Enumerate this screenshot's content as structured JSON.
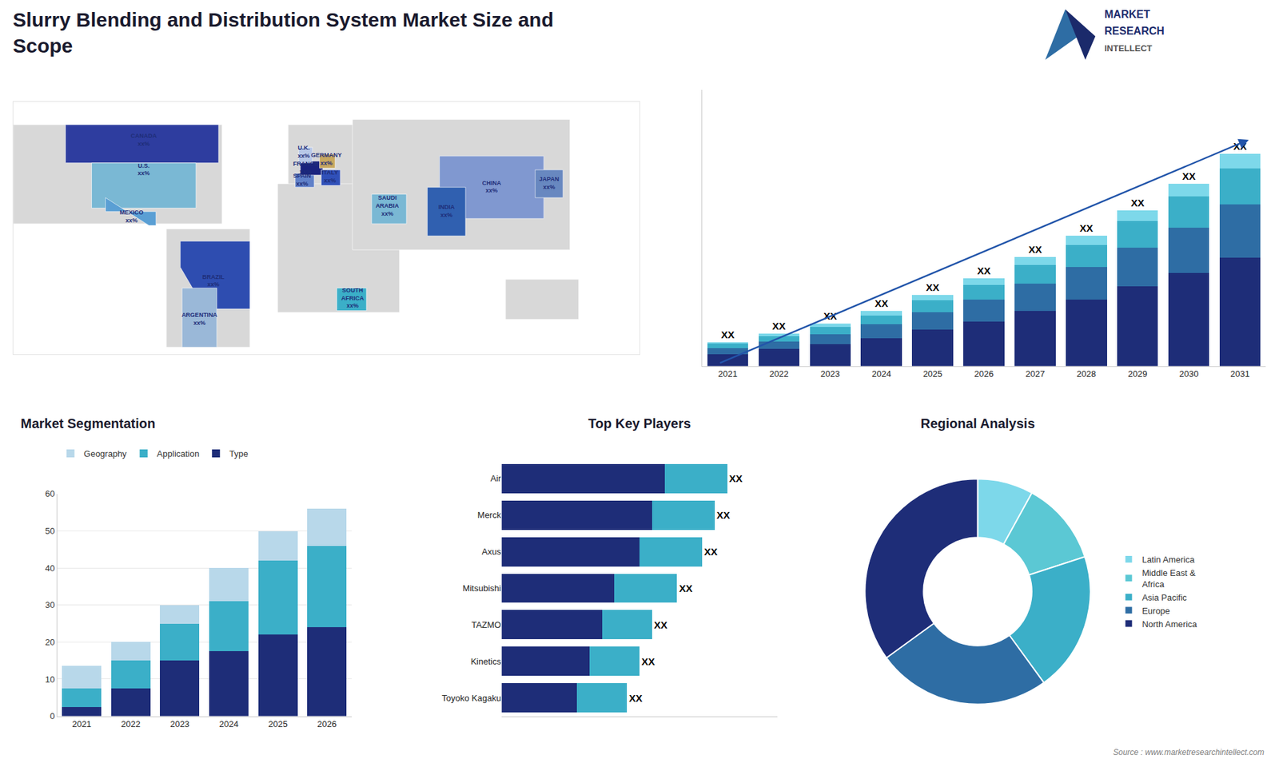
{
  "title": "Slurry Blending and Distribution System Market Size and\nScope",
  "annotations": [
    "MARKET",
    "RESEARCH",
    "INTELLECT",
    "Source : www.marketresearchintellect.com"
  ],
  "chart_data": [
    {
      "type": "map",
      "xlim": [
        -170,
        190
      ],
      "ylim": [
        -60,
        85
      ],
      "tick_labels": false,
      "label_color": "#1e2d78",
      "land": {
        "color": "#d8d8d8",
        "polygons": [
          {
            "x": [
              -170,
              -170,
              -50,
              -50
            ],
            "y": [
              15,
              72,
              72,
              15
            ]
          },
          {
            "x": [
              -82,
              -82,
              -34,
              -34
            ],
            "y": [
              12,
              -56,
              -56,
              12
            ]
          },
          {
            "x": [
              -12,
              -12,
              45,
              45
            ],
            "y": [
              35,
              72,
              72,
              35
            ]
          },
          {
            "x": [
              -18,
              -18,
              52,
              52
            ],
            "y": [
              -36,
              38,
              38,
              -36
            ]
          },
          {
            "x": [
              25,
              25,
              150,
              150
            ],
            "y": [
              0,
              75,
              75,
              0
            ]
          },
          {
            "x": [
              113,
              113,
              155,
              155
            ],
            "y": [
              -40,
              -17,
              -17,
              -40
            ]
          }
        ]
      },
      "regions": [
        {
          "label": "CANADA\nxx%",
          "color": "#2e3d9f",
          "x": [
            -140,
            -52,
            -52,
            -140
          ],
          "y": [
            50,
            50,
            72,
            72
          ],
          "label_x": -95,
          "label_y": 63
        },
        {
          "label": "U.S.\nxx%",
          "color": "#7ab8d4",
          "x": [
            -125,
            -65,
            -65,
            -125
          ],
          "y": [
            24,
            24,
            50,
            50
          ],
          "label_x": -95,
          "label_y": 46
        },
        {
          "label": "MEXICO\nxx%",
          "color": "#5a9fd4",
          "x": [
            -117,
            -88,
            -88,
            -92,
            -117
          ],
          "y": [
            22,
            22,
            14,
            14,
            30
          ],
          "label_x": -102,
          "label_y": 19
        },
        {
          "label": "BRAZIL\nxx%",
          "color": "#2e4db0",
          "x": [
            -74,
            -34,
            -34,
            -60,
            -74
          ],
          "y": [
            5,
            5,
            -34,
            -34,
            -10
          ],
          "label_x": -55,
          "label_y": -18
        },
        {
          "label": "ARGENTINA\nxx%",
          "color": "#9ab8d8",
          "x": [
            -73,
            -53,
            -53,
            -73
          ],
          "y": [
            -22,
            -22,
            -56,
            -56
          ],
          "label_x": -63,
          "label_y": -40
        },
        {
          "label": "SPAIN\nxx%",
          "color": "#6080c8",
          "x": [
            -8,
            3,
            3,
            -8
          ],
          "y": [
            36,
            36,
            44,
            44
          ],
          "label_x": -4,
          "label_y": 40
        },
        {
          "label": "FRANCE\nxx%",
          "color": "#1a237e",
          "x": [
            -5,
            8,
            8,
            -5
          ],
          "y": [
            43,
            43,
            51,
            51
          ],
          "label_x": -2,
          "label_y": 47
        },
        {
          "label": "U.K.\nxx%",
          "color": "#b8c8e8",
          "x": [
            -6,
            2,
            2,
            -6
          ],
          "y": [
            50,
            50,
            59,
            59
          ],
          "label_x": -3,
          "label_y": 56
        },
        {
          "label": "GERMANY\nxx%",
          "color": "#c8a860",
          "x": [
            6,
            15,
            15,
            6
          ],
          "y": [
            47,
            47,
            55,
            55
          ],
          "label_x": 10,
          "label_y": 52
        },
        {
          "label": "ITALY\nxx%",
          "color": "#3050b8",
          "x": [
            7,
            18,
            18,
            7
          ],
          "y": [
            37,
            37,
            46,
            46
          ],
          "label_x": 12,
          "label_y": 42
        },
        {
          "label": "SAUDI\nARABIA\nxx%",
          "color": "#7ab8d4",
          "x": [
            36,
            56,
            56,
            36
          ],
          "y": [
            15,
            15,
            32,
            32
          ],
          "label_x": 45,
          "label_y": 25
        },
        {
          "label": "SOUTH\nAFRICA\nxx%",
          "color": "#3bafc8",
          "x": [
            16,
            33,
            33,
            16
          ],
          "y": [
            -35,
            -35,
            -22,
            -22
          ],
          "label_x": 25,
          "label_y": -28
        },
        {
          "label": "CHINA\nxx%",
          "color": "#8098d0",
          "x": [
            75,
            135,
            135,
            75
          ],
          "y": [
            18,
            18,
            54,
            54
          ],
          "label_x": 105,
          "label_y": 36
        },
        {
          "label": "INDIA\nxx%",
          "color": "#3060b0",
          "x": [
            68,
            90,
            90,
            68
          ],
          "y": [
            8,
            8,
            36,
            36
          ],
          "label_x": 79,
          "label_y": 22
        },
        {
          "label": "JAPAN\nxx%",
          "color": "#6888c0",
          "x": [
            130,
            146,
            146,
            130
          ],
          "y": [
            30,
            30,
            46,
            46
          ],
          "label_x": 138,
          "label_y": 38
        }
      ]
    },
    {
      "type": "bar",
      "stacked": true,
      "categories": [
        "2021",
        "2022",
        "2023",
        "2024",
        "2025",
        "2026",
        "2027",
        "2028",
        "2029",
        "2030",
        "2031"
      ],
      "series": [
        {
          "color": "#1e2d78",
          "values": [
            1.0,
            1.4,
            1.8,
            2.3,
            3.0,
            3.7,
            4.6,
            5.5,
            6.6,
            7.7,
            9.0
          ]
        },
        {
          "color": "#2e6da4",
          "values": [
            0.5,
            0.65,
            0.85,
            1.15,
            1.45,
            1.8,
            2.25,
            2.7,
            3.2,
            3.75,
            4.4
          ]
        },
        {
          "color": "#3bafc8",
          "values": [
            0.35,
            0.45,
            0.6,
            0.75,
            1.0,
            1.25,
            1.55,
            1.85,
            2.2,
            2.6,
            3.0
          ]
        },
        {
          "color": "#7dd8ea",
          "values": [
            0.15,
            0.2,
            0.3,
            0.35,
            0.45,
            0.55,
            0.65,
            0.75,
            0.9,
            1.05,
            1.2
          ]
        }
      ],
      "annotations": [
        {
          "category": "2021",
          "text": "XX"
        },
        {
          "category": "2022",
          "text": "XX"
        },
        {
          "category": "2023",
          "text": "XX"
        },
        {
          "category": "2024",
          "text": "XX"
        },
        {
          "category": "2025",
          "text": "XX"
        },
        {
          "category": "2026",
          "text": "XX"
        },
        {
          "category": "2027",
          "text": "XX"
        },
        {
          "category": "2028",
          "text": "XX"
        },
        {
          "category": "2029",
          "text": "XX"
        },
        {
          "category": "2030",
          "text": "XX"
        },
        {
          "category": "2031",
          "text": "XX"
        }
      ],
      "ylim": [
        0,
        22.88
      ],
      "yticks": [],
      "tick_labels": "x",
      "grid": false
    },
    {
      "type": "bar",
      "stacked": true,
      "title": "Market Segmentation",
      "categories": [
        "2021",
        "2022",
        "2023",
        "2024",
        "2025",
        "2026"
      ],
      "series": [
        {
          "name": "Type",
          "color": "#1e2d78",
          "values": [
            2.5,
            7.5,
            15.0,
            17.5,
            22.0,
            24.0
          ]
        },
        {
          "name": "Application",
          "color": "#3bafc8",
          "values": [
            5.0,
            7.5,
            10.0,
            13.5,
            20.0,
            22.0
          ]
        },
        {
          "name": "Geography",
          "color": "#b8d8ea",
          "values": [
            6.0,
            5.0,
            5.0,
            9.0,
            8.0,
            10.0
          ]
        }
      ],
      "ylim": [
        0,
        60
      ],
      "yticks": [
        0,
        10,
        20,
        30,
        40,
        50,
        60
      ],
      "grid": true,
      "legend": "top"
    },
    {
      "type": "bar",
      "stacked": true,
      "orientation": "horizontal",
      "title": "Top Key Players",
      "categories": [
        "Air",
        "Merck",
        "Axus",
        "Mitsubishi",
        "TAZMO",
        "Kinetics",
        "Toyoko Kagaku"
      ],
      "series": [
        {
          "color": "#1e2d78",
          "values": [
            6.5,
            6.0,
            5.5,
            4.5,
            4.0,
            3.5,
            3.0
          ]
        },
        {
          "color": "#3bafc8",
          "values": [
            2.5,
            2.5,
            2.5,
            2.5,
            2.0,
            2.0,
            2.0
          ]
        }
      ],
      "annotations": [
        {
          "category": "Air",
          "text": "XX"
        },
        {
          "category": "Merck",
          "text": "XX"
        },
        {
          "category": "Axus",
          "text": "XX"
        },
        {
          "category": "Mitsubishi",
          "text": "XX"
        },
        {
          "category": "TAZMO",
          "text": "XX"
        },
        {
          "category": "Kinetics",
          "text": "XX"
        },
        {
          "category": "Toyoko Kagaku",
          "text": "XX"
        }
      ],
      "xlim": [
        0,
        11
      ],
      "xticks": [],
      "tick_labels": "y",
      "grid": false
    },
    {
      "type": "pie",
      "title": "Regional Analysis",
      "categories": [
        "Latin America",
        "Middle East &\nAfrica",
        "Asia Pacific",
        "Europe",
        "North America"
      ],
      "values": [
        8,
        12,
        20,
        25,
        35
      ],
      "colors": [
        "#7dd8ea",
        "#5bc8d4",
        "#3bafc8",
        "#2e6da4",
        "#1e2d78"
      ],
      "legend": "right"
    }
  ]
}
